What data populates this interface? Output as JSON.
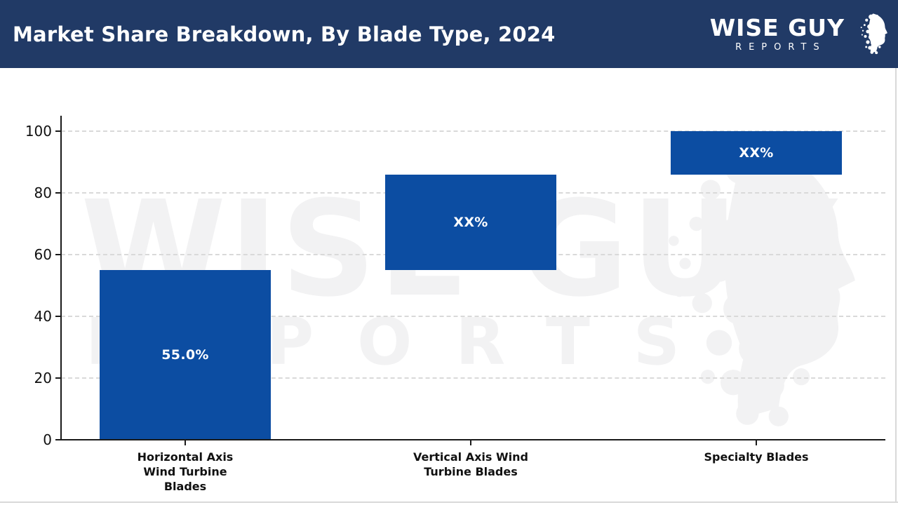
{
  "header": {
    "title": "Market Share Breakdown, By Blade Type, 2024",
    "logo": {
      "line1": "WISE GUY",
      "line2": "REPORTS"
    }
  },
  "watermark": {
    "line1": "WISE GUY",
    "line2": "REPORTS"
  },
  "chart_data": {
    "type": "bar",
    "subtype": "floating-segment-columns",
    "title": "Market Share Breakdown, By Blade Type, 2024",
    "categories": [
      "Horizontal Axis Wind Turbine Blades",
      "Vertical Axis Wind Turbine Blades",
      "Specialty Blades"
    ],
    "category_label_lines": [
      [
        "Horizontal Axis",
        "Wind Turbine",
        "Blades"
      ],
      [
        "Vertical Axis Wind",
        "Turbine Blades"
      ],
      [
        "Specialty Blades"
      ]
    ],
    "segments": [
      {
        "category": "Horizontal Axis Wind Turbine Blades",
        "from": 0,
        "to": 55,
        "label": "55.0%"
      },
      {
        "category": "Vertical Axis Wind Turbine Blades",
        "from": 55,
        "to": 86,
        "label": "XX%"
      },
      {
        "category": "Specialty Blades",
        "from": 86,
        "to": 100,
        "label": "XX%"
      }
    ],
    "ylim": [
      0,
      100
    ],
    "yticks": [
      0,
      20,
      40,
      60,
      80,
      100
    ],
    "xlabel": "",
    "ylabel": "",
    "grid": "horizontal-dashed",
    "legend": "none",
    "bar_color": "#0C4DA2",
    "bar_label_color": "#ffffff",
    "axis_color": "#1a1a1a",
    "grid_color": "#d9d9d9",
    "header_bg_color": "#213A66",
    "watermark_color": "#f2f2f3"
  }
}
